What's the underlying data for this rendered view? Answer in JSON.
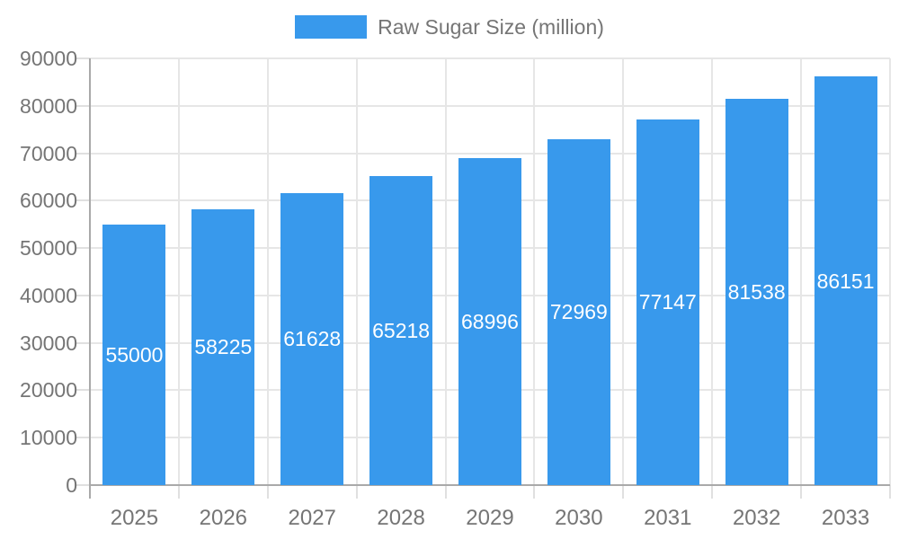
{
  "chart_data": {
    "type": "bar",
    "title": "",
    "xlabel": "",
    "ylabel": "",
    "categories": [
      "2025",
      "2026",
      "2027",
      "2028",
      "2029",
      "2030",
      "2031",
      "2032",
      "2033"
    ],
    "series": [
      {
        "name": "Raw Sugar Size (million)",
        "values": [
          55000,
          58225,
          61628,
          65218,
          68996,
          72969,
          77147,
          81538,
          86151
        ]
      }
    ],
    "y_tick_labels": [
      "0",
      "10000",
      "20000",
      "30000",
      "40000",
      "50000",
      "60000",
      "70000",
      "80000",
      "90000"
    ],
    "ylim": [
      0,
      90000
    ],
    "ytick_step": 10000,
    "grid": true,
    "legend_position": "top",
    "value_labels": "inside-center",
    "colors": {
      "bar": "#3899ec",
      "value_label": "#ffffff",
      "axis_text": "#757575",
      "gridline": "#e6e6e6",
      "tick": "#e0e0e0",
      "axis_line": "#a9a9a9"
    }
  }
}
